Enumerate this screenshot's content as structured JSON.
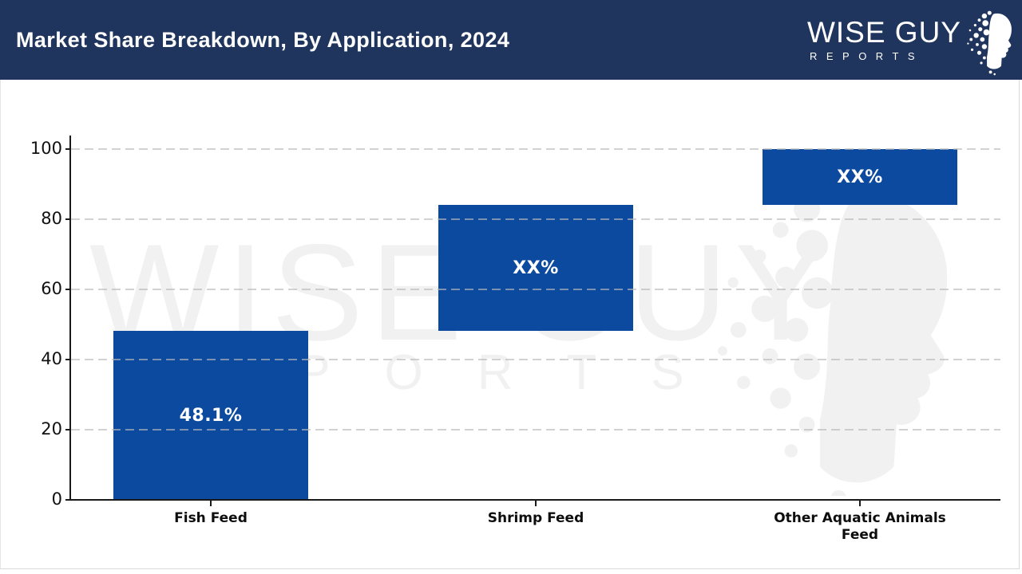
{
  "header": {
    "title": "Market Share Breakdown, By Application, 2024",
    "background_color": "#1f355e",
    "logo": {
      "wordmark": "WISE GUY",
      "subtext": "REPORTS"
    }
  },
  "watermark": {
    "line1": "WISE GUY",
    "line2": "REPORTS"
  },
  "chart_data": {
    "type": "bar",
    "subtype": "floating-segment-waterfall",
    "title": "Market Share Breakdown, By Application, 2024",
    "categories": [
      "Fish Feed",
      "Shrimp Feed",
      "Other Aquatic Animals Feed"
    ],
    "segments": [
      {
        "category": "Fish Feed",
        "start": 0,
        "end": 48.1,
        "value_label": "48.1%"
      },
      {
        "category": "Shrimp Feed",
        "start": 48.1,
        "end": 84,
        "value_label": "XX%"
      },
      {
        "category": "Other Aquatic Animals Feed",
        "start": 84,
        "end": 100,
        "value_label": "XX%"
      }
    ],
    "ylim": [
      0,
      100
    ],
    "yticks": [
      0,
      20,
      40,
      60,
      80,
      100
    ],
    "grid": "horizontal-dashed",
    "legend": "none",
    "bar_color": "#0b4a9e",
    "value_label_color": "#ffffff"
  }
}
